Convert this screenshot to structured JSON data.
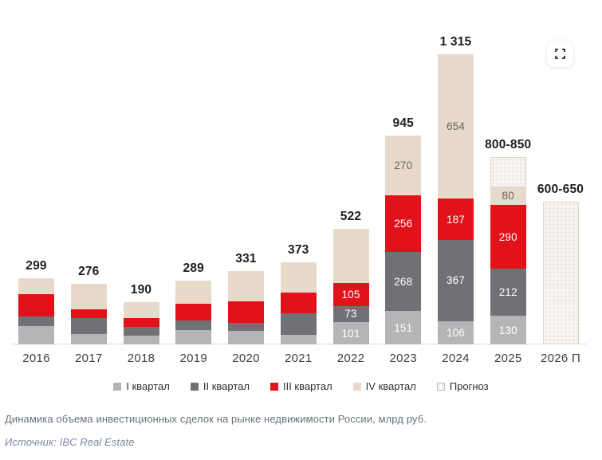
{
  "icons": {
    "fullscreen": "expand-corners"
  },
  "caption": "Динамика объема инвестиционных сделок на рынке недвижимости России, млрд руб.",
  "source": "Источник: IBC Real Estate",
  "legend": {
    "items": [
      {
        "label": "I квартал",
        "color": "#b4b5b7",
        "border": "",
        "pattern": false
      },
      {
        "label": "II квартал",
        "color": "#707174",
        "border": "",
        "pattern": false
      },
      {
        "label": "III квартал",
        "color": "#e2121a",
        "border": "",
        "pattern": false
      },
      {
        "label": "IV квартал",
        "color": "#e8dacb",
        "border": "",
        "pattern": false
      },
      {
        "label": "Прогноз",
        "color": "#ffffff",
        "border": "#bdb8b0",
        "pattern": true
      }
    ]
  },
  "chart_data": {
    "type": "bar",
    "stacked": true,
    "title": "Динамика объема инвестиционных сделок на рынке недвижимости России, млрд руб.",
    "xlabel": "",
    "ylabel": "млрд руб.",
    "grid": false,
    "legend_position": "bottom",
    "axis_color": "#d8d8d8",
    "categories": [
      "2016",
      "2017",
      "2018",
      "2019",
      "2020",
      "2021",
      "2022",
      "2023",
      "2024",
      "2025",
      "2026 П"
    ],
    "totals": [
      "299",
      "276",
      "190",
      "289",
      "331",
      "373",
      "522",
      "945",
      "1 315",
      "800-850",
      "600-650"
    ],
    "series": [
      {
        "name": "I квартал",
        "color": "#b4b5b7",
        "label_color": "#ffffff",
        "pattern": false,
        "values": [
          84,
          48,
          40,
          65,
          60,
          45,
          101,
          151,
          106,
          130,
          0
        ],
        "labels": [
          "",
          "",
          "",
          "",
          "",
          "",
          "101",
          "151",
          "106",
          "130",
          ""
        ]
      },
      {
        "name": "II квартал",
        "color": "#707174",
        "label_color": "#ffffff",
        "pattern": false,
        "values": [
          42,
          72,
          39,
          45,
          37,
          96,
          73,
          268,
          367,
          212,
          0
        ],
        "labels": [
          "",
          "",
          "",
          "",
          "",
          "",
          "73",
          "268",
          "367",
          "212",
          ""
        ]
      },
      {
        "name": "III квартал",
        "color": "#e2121a",
        "label_color": "#ffffff",
        "pattern": false,
        "values": [
          100,
          40,
          41,
          75,
          99,
          95,
          105,
          256,
          187,
          290,
          0
        ],
        "labels": [
          "",
          "",
          "",
          "",
          "",
          "",
          "105",
          "256",
          "187",
          "290",
          ""
        ]
      },
      {
        "name": "IV квартал",
        "color": "#e8dacb",
        "label_color": "#66615c",
        "pattern": false,
        "values": [
          73,
          116,
          70,
          104,
          135,
          137,
          243,
          270,
          654,
          80,
          0
        ],
        "labels": [
          "",
          "",
          "",
          "",
          "",
          "",
          "",
          "270",
          "654",
          "80",
          ""
        ]
      },
      {
        "name": "Прогноз",
        "color": "#f7f5f1",
        "label_color": "#66615c",
        "pattern": true,
        "values": [
          0,
          0,
          0,
          0,
          0,
          0,
          0,
          0,
          0,
          138,
          645
        ],
        "labels": [
          "",
          "",
          "",
          "",
          "",
          "",
          "",
          "",
          "",
          "",
          ""
        ]
      }
    ]
  }
}
